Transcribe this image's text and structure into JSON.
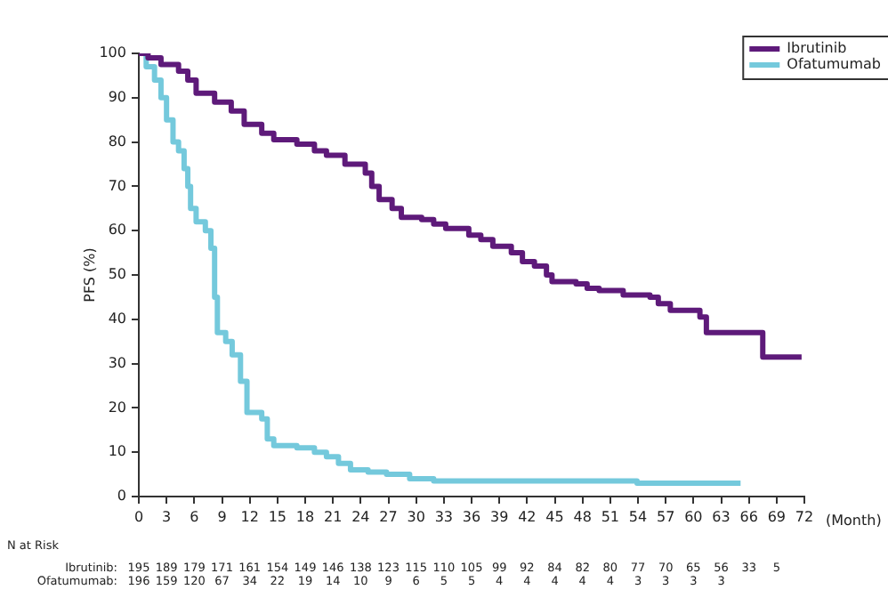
{
  "chart_data": {
    "type": "step",
    "xlabel": "(Month)",
    "ylabel": "PFS (%)",
    "xlim": [
      0,
      72
    ],
    "xticks": [
      0,
      3,
      6,
      9,
      12,
      15,
      18,
      21,
      24,
      27,
      30,
      33,
      36,
      39,
      42,
      45,
      48,
      51,
      54,
      57,
      60,
      63,
      66,
      69,
      72
    ],
    "ylim": [
      0,
      100
    ],
    "yticks": [
      0,
      10,
      20,
      30,
      40,
      50,
      60,
      70,
      80,
      90,
      100
    ],
    "grid": false,
    "legend": "top right",
    "line_style": "solid",
    "marker": "none",
    "series": [
      {
        "name": "Ibrutinib",
        "color": "#5e1a7a",
        "x": [
          0,
          1,
          2.4,
          4.3,
          5.3,
          6.2,
          8.2,
          10,
          11.4,
          13.3,
          14.6,
          17.1,
          19,
          20.3,
          22.3,
          24.5,
          25.2,
          26,
          27.4,
          28.4,
          30.6,
          31.9,
          33.2,
          35.7,
          37,
          38.3,
          40.3,
          41.5,
          42.8,
          44.1,
          44.7,
          47.3,
          48.5,
          49.8,
          52.4,
          55.3,
          56.2,
          57.5,
          60.7,
          61.4,
          67.5,
          71.7
        ],
        "values": [
          100,
          99,
          97.5,
          96,
          94,
          91,
          89,
          87,
          84,
          82,
          80.5,
          79.5,
          78,
          77,
          75,
          73,
          70,
          67,
          65,
          63,
          62.5,
          61.5,
          60.5,
          59,
          58,
          56.5,
          55,
          53,
          52,
          50,
          48.5,
          48,
          47,
          46.5,
          45.5,
          45,
          43.5,
          42,
          40.5,
          37,
          31.5,
          31.5
        ]
      },
      {
        "name": "Ofatumumab",
        "color": "#74c9dc",
        "x": [
          0,
          0.8,
          1.7,
          2.4,
          3,
          3.7,
          4.3,
          4.9,
          5.3,
          5.6,
          6.2,
          7.2,
          7.8,
          8.2,
          8.5,
          9.4,
          10.1,
          11,
          11.7,
          13.3,
          13.9,
          14.6,
          17.1,
          19,
          20.3,
          21.6,
          22.9,
          24.8,
          26.8,
          29.3,
          31.9,
          53.9,
          65.1
        ],
        "values": [
          100,
          97,
          94,
          90,
          85,
          80,
          78,
          74,
          70,
          65,
          62,
          60,
          56,
          45,
          37,
          35,
          32,
          26,
          19,
          17.5,
          13,
          11.5,
          11,
          10,
          9,
          7.5,
          6,
          5.5,
          5,
          4,
          3.5,
          3,
          3
        ]
      }
    ],
    "annotations": [
      "N at Risk",
      "Ibrutinib: 195 189 179 171 161 154 149 146 138 123 115 110 105 99 92 84 82 80 77 70 65 56 33 5",
      "Ofatumumab: 196 159 120 67 34 22 19 14 10 9 6 5 5 4 4 4 4 4 3 3 3 3"
    ]
  }
}
